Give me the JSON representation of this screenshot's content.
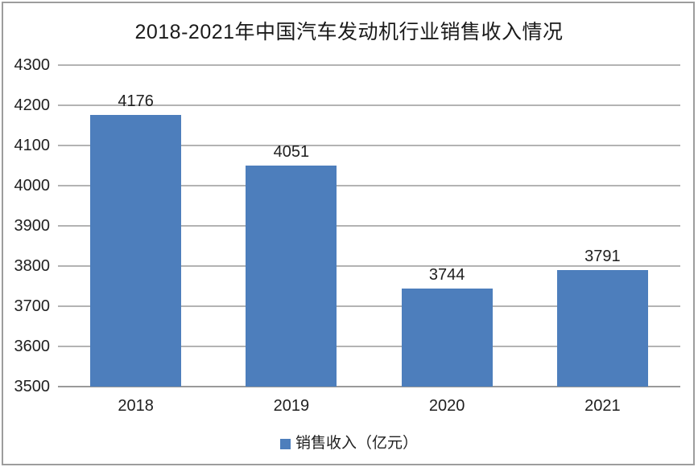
{
  "chart_data": {
    "type": "bar",
    "title": "2018-2021年中国汽车发动机行业销售收入情况",
    "categories": [
      "2018",
      "2019",
      "2020",
      "2021"
    ],
    "series": [
      {
        "name": "销售收入（亿元）",
        "values": [
          4176,
          4051,
          3744,
          3791
        ]
      }
    ],
    "legend_label": "销售收入（亿元）",
    "legend_position": "bottom",
    "xlabel": "",
    "ylabel": "",
    "ylim": [
      3500,
      4300
    ],
    "ytick_step": 100,
    "ytick_labels": [
      "4300",
      "4200",
      "4100",
      "4000",
      "3900",
      "3800",
      "3700",
      "3600",
      "3500"
    ],
    "grid": true,
    "colors": {
      "bar": "#4D7EBC",
      "gridline": "#b3b3b3",
      "axis_line": "#9a9a9a",
      "text": "#1f1f1f",
      "frame_border": "#9d9d9d",
      "background": "#ffffff"
    }
  }
}
